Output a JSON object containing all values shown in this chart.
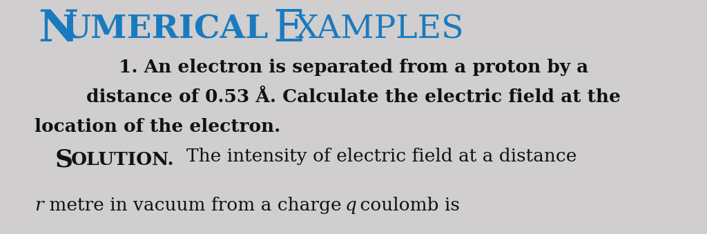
{
  "bg_color": "#d0cece",
  "title_color": "#1a7abf",
  "body_color": "#111111",
  "title_numerical": "Numerical",
  "title_examples": "Examples",
  "line1": "1. An electron is separated from a proton by a",
  "line2": "distance of 0.53 Å. Calculate the electric field at the",
  "line3": "location of the electron.",
  "solution_big": "Solution.",
  "solution_rest": " The intensity of electric field at a distance",
  "line5a": "r",
  "line5b": " metre in vacuum from a charge ",
  "line5c": "q",
  "line5d": " coulomb is",
  "title_fontsize": 42,
  "body_fontsize": 19,
  "solution_big_size": 21,
  "solution_rest_size": 19
}
